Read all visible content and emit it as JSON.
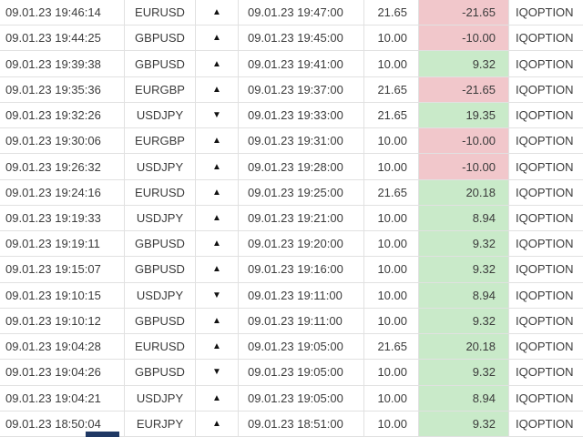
{
  "icons": {
    "up": "▲",
    "down": "▼"
  },
  "colors": {
    "grid": "#e1e1e1",
    "win_bg": "#c9eac9",
    "loss_bg": "#f1c7cb",
    "navy": "#1f3864",
    "text": "#3b3b3b"
  },
  "table": {
    "columns": [
      "open_time",
      "pair",
      "direction",
      "close_time",
      "amount",
      "profit",
      "broker"
    ],
    "rows": [
      {
        "open_time": "09.01.23 19:46:14",
        "pair": "EURUSD",
        "direction": "up",
        "close_time": "09.01.23 19:47:00",
        "amount": "21.65",
        "profit": "-21.65",
        "result": "loss",
        "broker": "IQOPTION"
      },
      {
        "open_time": "09.01.23 19:44:25",
        "pair": "GBPUSD",
        "direction": "up",
        "close_time": "09.01.23 19:45:00",
        "amount": "10.00",
        "profit": "-10.00",
        "result": "loss",
        "broker": "IQOPTION"
      },
      {
        "open_time": "09.01.23 19:39:38",
        "pair": "GBPUSD",
        "direction": "up",
        "close_time": "09.01.23 19:41:00",
        "amount": "10.00",
        "profit": "9.32",
        "result": "win",
        "broker": "IQOPTION"
      },
      {
        "open_time": "09.01.23 19:35:36",
        "pair": "EURGBP",
        "direction": "up",
        "close_time": "09.01.23 19:37:00",
        "amount": "21.65",
        "profit": "-21.65",
        "result": "loss",
        "broker": "IQOPTION"
      },
      {
        "open_time": "09.01.23 19:32:26",
        "pair": "USDJPY",
        "direction": "down",
        "close_time": "09.01.23 19:33:00",
        "amount": "21.65",
        "profit": "19.35",
        "result": "win",
        "broker": "IQOPTION"
      },
      {
        "open_time": "09.01.23 19:30:06",
        "pair": "EURGBP",
        "direction": "up",
        "close_time": "09.01.23 19:31:00",
        "amount": "10.00",
        "profit": "-10.00",
        "result": "loss",
        "broker": "IQOPTION"
      },
      {
        "open_time": "09.01.23 19:26:32",
        "pair": "USDJPY",
        "direction": "up",
        "close_time": "09.01.23 19:28:00",
        "amount": "10.00",
        "profit": "-10.00",
        "result": "loss",
        "broker": "IQOPTION"
      },
      {
        "open_time": "09.01.23 19:24:16",
        "pair": "EURUSD",
        "direction": "up",
        "close_time": "09.01.23 19:25:00",
        "amount": "21.65",
        "profit": "20.18",
        "result": "win",
        "broker": "IQOPTION"
      },
      {
        "open_time": "09.01.23 19:19:33",
        "pair": "USDJPY",
        "direction": "up",
        "close_time": "09.01.23 19:21:00",
        "amount": "10.00",
        "profit": "8.94",
        "result": "win",
        "broker": "IQOPTION"
      },
      {
        "open_time": "09.01.23 19:19:11",
        "pair": "GBPUSD",
        "direction": "up",
        "close_time": "09.01.23 19:20:00",
        "amount": "10.00",
        "profit": "9.32",
        "result": "win",
        "broker": "IQOPTION"
      },
      {
        "open_time": "09.01.23 19:15:07",
        "pair": "GBPUSD",
        "direction": "up",
        "close_time": "09.01.23 19:16:00",
        "amount": "10.00",
        "profit": "9.32",
        "result": "win",
        "broker": "IQOPTION"
      },
      {
        "open_time": "09.01.23 19:10:15",
        "pair": "USDJPY",
        "direction": "down",
        "close_time": "09.01.23 19:11:00",
        "amount": "10.00",
        "profit": "8.94",
        "result": "win",
        "broker": "IQOPTION"
      },
      {
        "open_time": "09.01.23 19:10:12",
        "pair": "GBPUSD",
        "direction": "up",
        "close_time": "09.01.23 19:11:00",
        "amount": "10.00",
        "profit": "9.32",
        "result": "win",
        "broker": "IQOPTION"
      },
      {
        "open_time": "09.01.23 19:04:28",
        "pair": "EURUSD",
        "direction": "up",
        "close_time": "09.01.23 19:05:00",
        "amount": "21.65",
        "profit": "20.18",
        "result": "win",
        "broker": "IQOPTION"
      },
      {
        "open_time": "09.01.23 19:04:26",
        "pair": "GBPUSD",
        "direction": "down",
        "close_time": "09.01.23 19:05:00",
        "amount": "10.00",
        "profit": "9.32",
        "result": "win",
        "broker": "IQOPTION"
      },
      {
        "open_time": "09.01.23 19:04:21",
        "pair": "USDJPY",
        "direction": "up",
        "close_time": "09.01.23 19:05:00",
        "amount": "10.00",
        "profit": "8.94",
        "result": "win",
        "broker": "IQOPTION"
      },
      {
        "open_time": "09.01.23 18:50:04",
        "pair": "EURJPY",
        "direction": "up",
        "close_time": "09.01.23 18:51:00",
        "amount": "10.00",
        "profit": "9.32",
        "result": "win",
        "broker": "IQOPTION"
      }
    ]
  }
}
